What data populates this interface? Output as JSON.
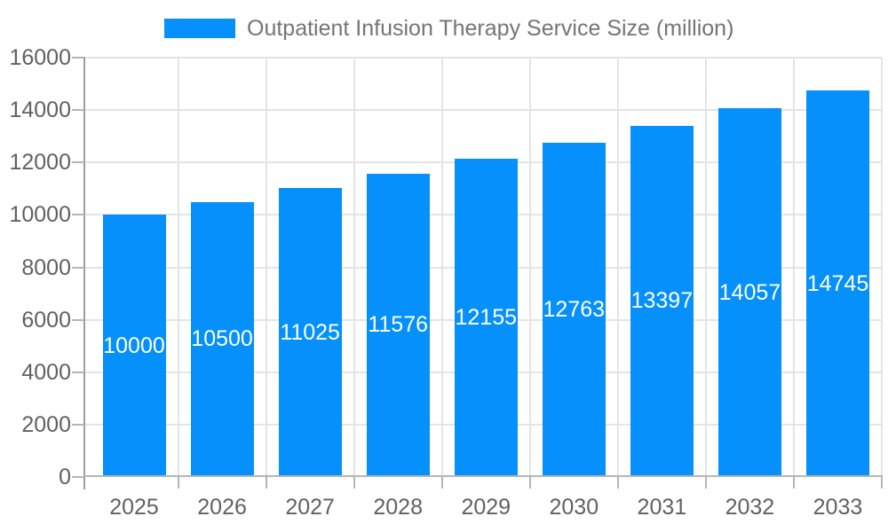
{
  "chart_data": {
    "type": "bar",
    "title": "Outpatient Infusion Therapy Service Size (million)",
    "categories": [
      "2025",
      "2026",
      "2027",
      "2028",
      "2029",
      "2030",
      "2031",
      "2032",
      "2033"
    ],
    "series": [
      {
        "name": "Outpatient Infusion Therapy Service Size (million)",
        "values": [
          10000,
          10500,
          11025,
          11576,
          12155,
          12763,
          13397,
          14057,
          14745
        ]
      }
    ],
    "xlabel": "",
    "ylabel": "",
    "ylim": [
      0,
      16000
    ],
    "yticks": [
      0,
      2000,
      4000,
      6000,
      8000,
      10000,
      12000,
      14000,
      16000
    ],
    "grid": true,
    "bar_labels_shown": true,
    "legend_position": "top"
  },
  "colors": {
    "bar": "#0590fb",
    "bar_label": "#ffffff",
    "legend_text": "#757575",
    "tick_label_text": "#616161",
    "gridline": "#e4e4e4",
    "axis_line": "#b5b5b5",
    "y_axis_line": "#9e9e9e"
  }
}
